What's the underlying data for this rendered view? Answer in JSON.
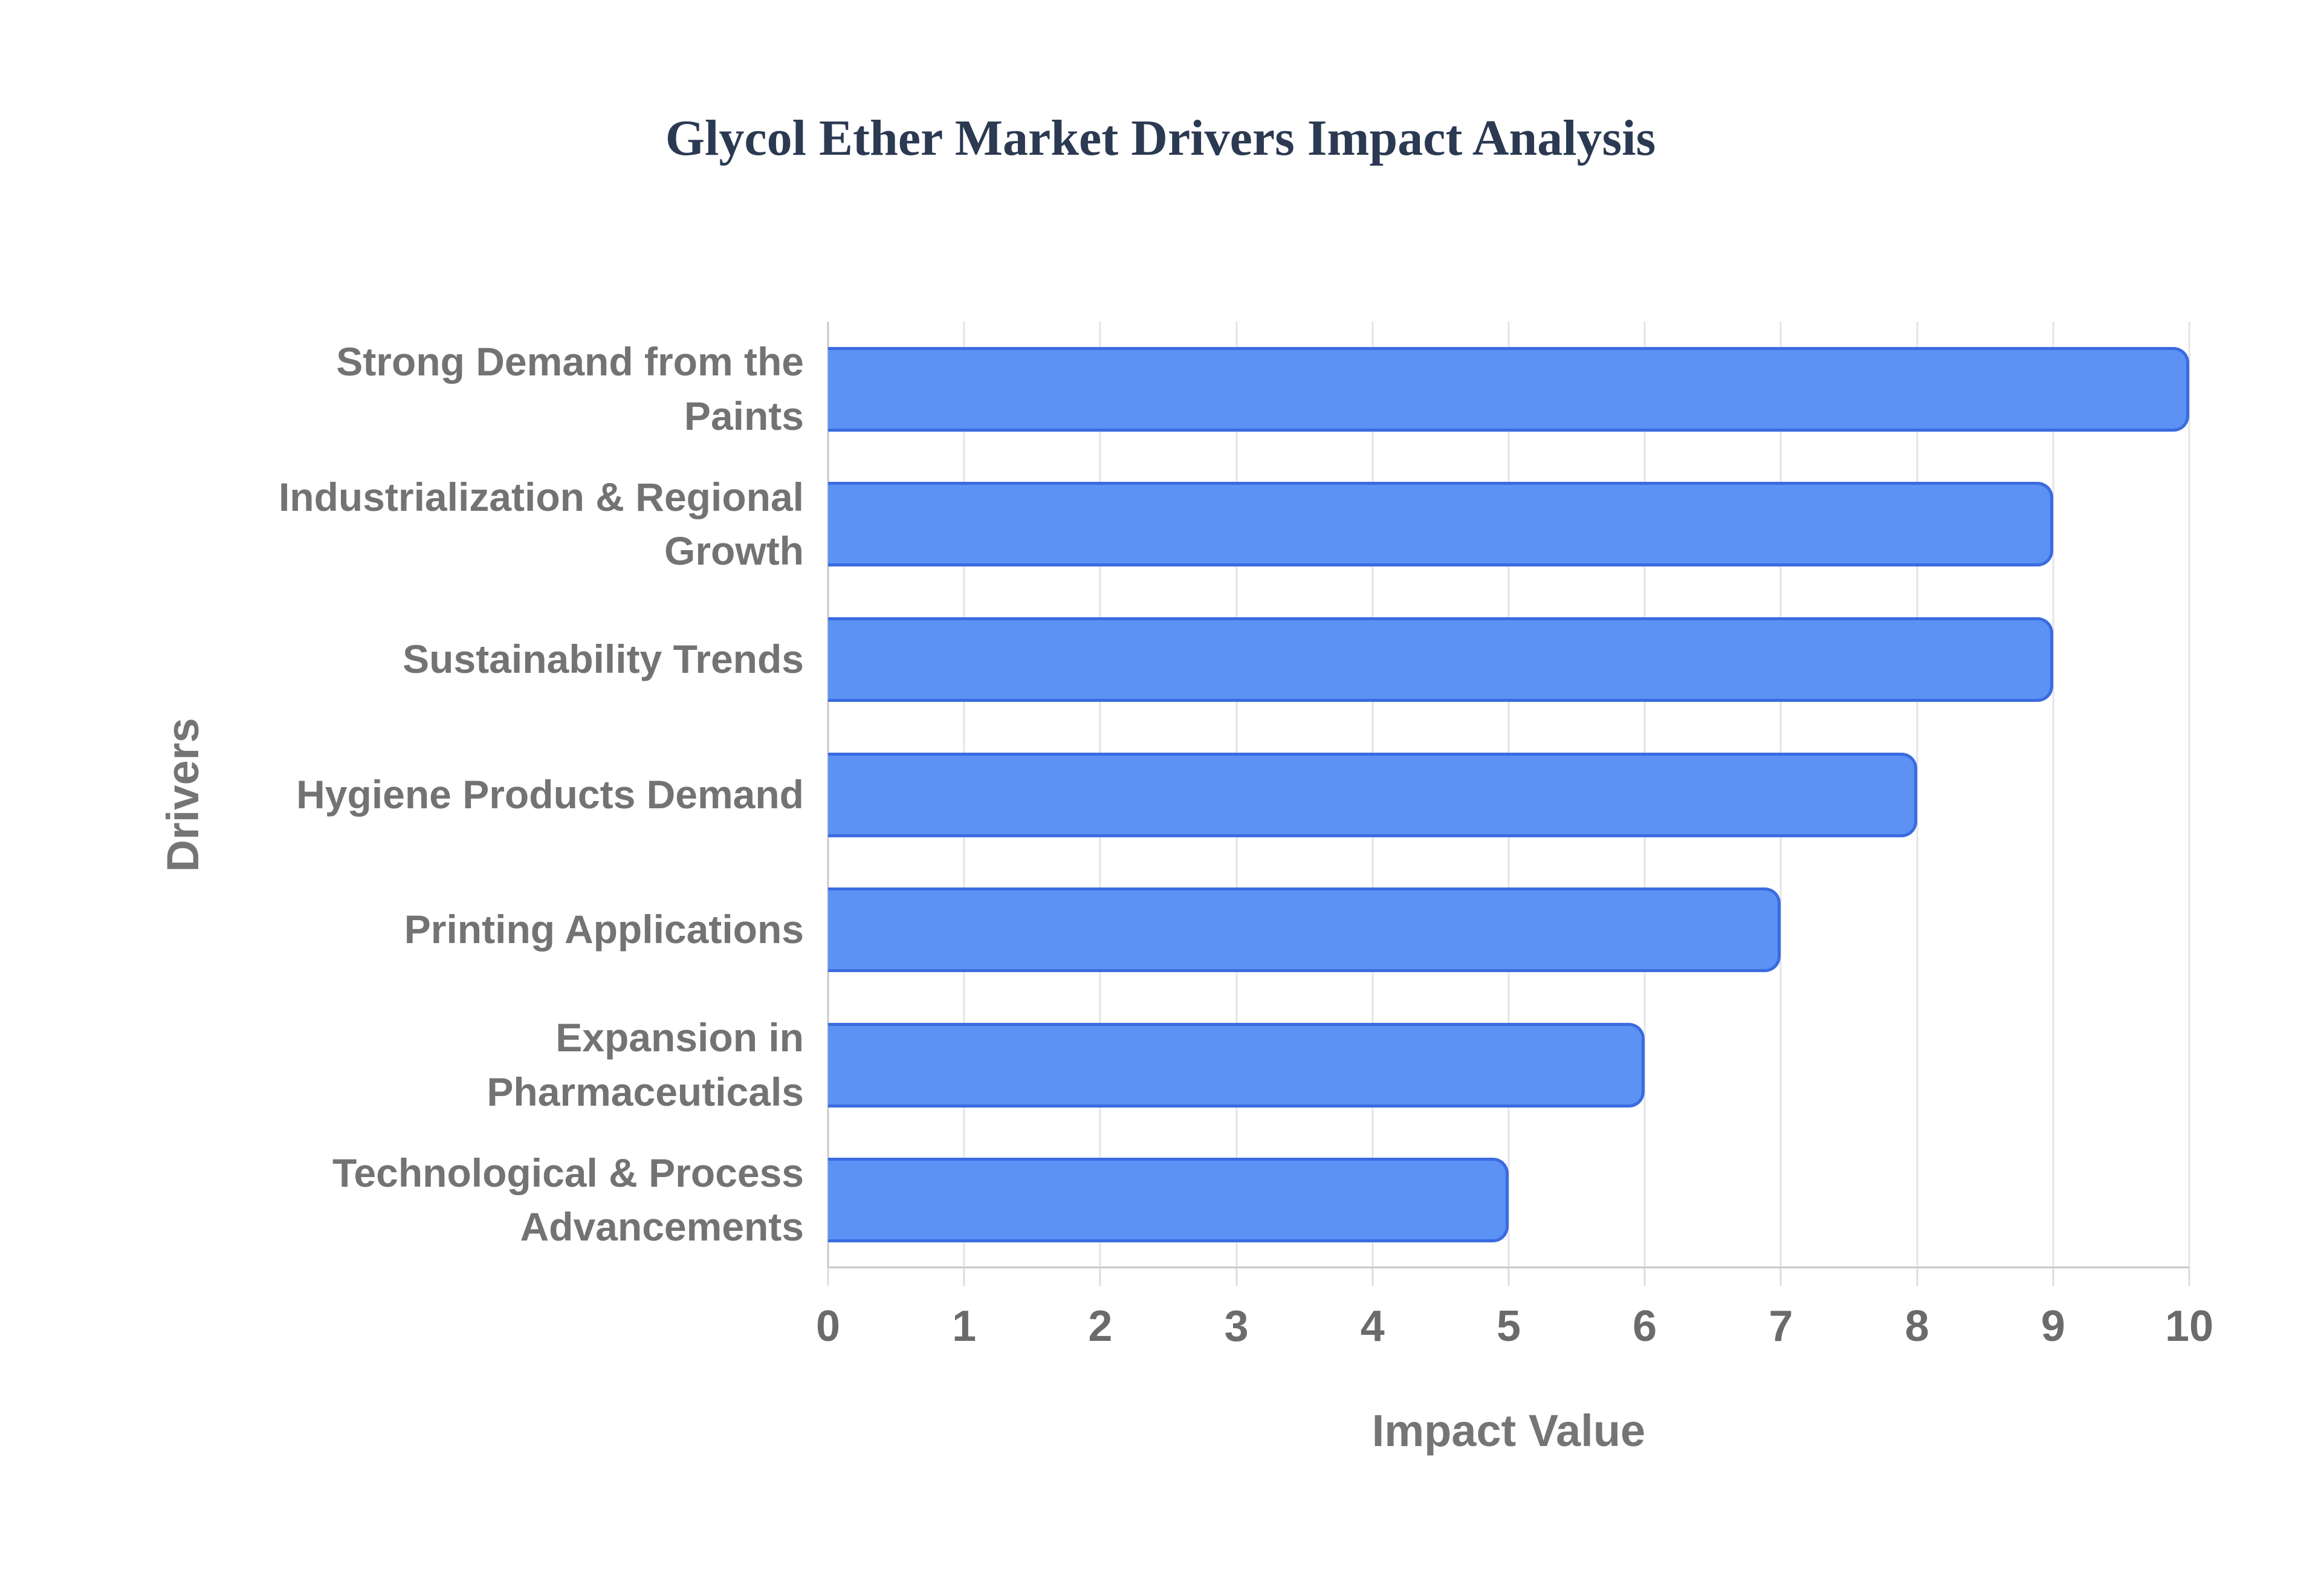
{
  "title": "Glycol Ether Market Drivers Impact Analysis",
  "chart_data": {
    "type": "bar",
    "orientation": "horizontal",
    "title": "Glycol Ether Market Drivers Impact Analysis",
    "categories": [
      "Strong Demand from the Paints",
      "Industrialization & Regional\nGrowth",
      "Sustainability Trends",
      "Hygiene Products Demand",
      "Printing Applications",
      "Expansion in Pharmaceuticals",
      "Technological & Process\nAdvancements"
    ],
    "values": [
      10,
      9,
      9,
      8,
      7,
      6,
      5
    ],
    "xlabel": "Impact Value",
    "ylabel": "Drivers",
    "xlim": [
      0,
      10
    ],
    "xticks": [
      0,
      1,
      2,
      3,
      4,
      5,
      6,
      7,
      8,
      9,
      10
    ],
    "grid": true,
    "legend": "none",
    "bar_fill_color": "#5b92f4",
    "bar_border_color": "#3a6be0",
    "gridline_color": "#e4e4e4",
    "axis_line_color": "#c8c8c8",
    "title_color": "#2b3a52",
    "label_color": "#737373",
    "tick_label_color": "#6b6b6b",
    "axis_title_color": "#757575"
  }
}
